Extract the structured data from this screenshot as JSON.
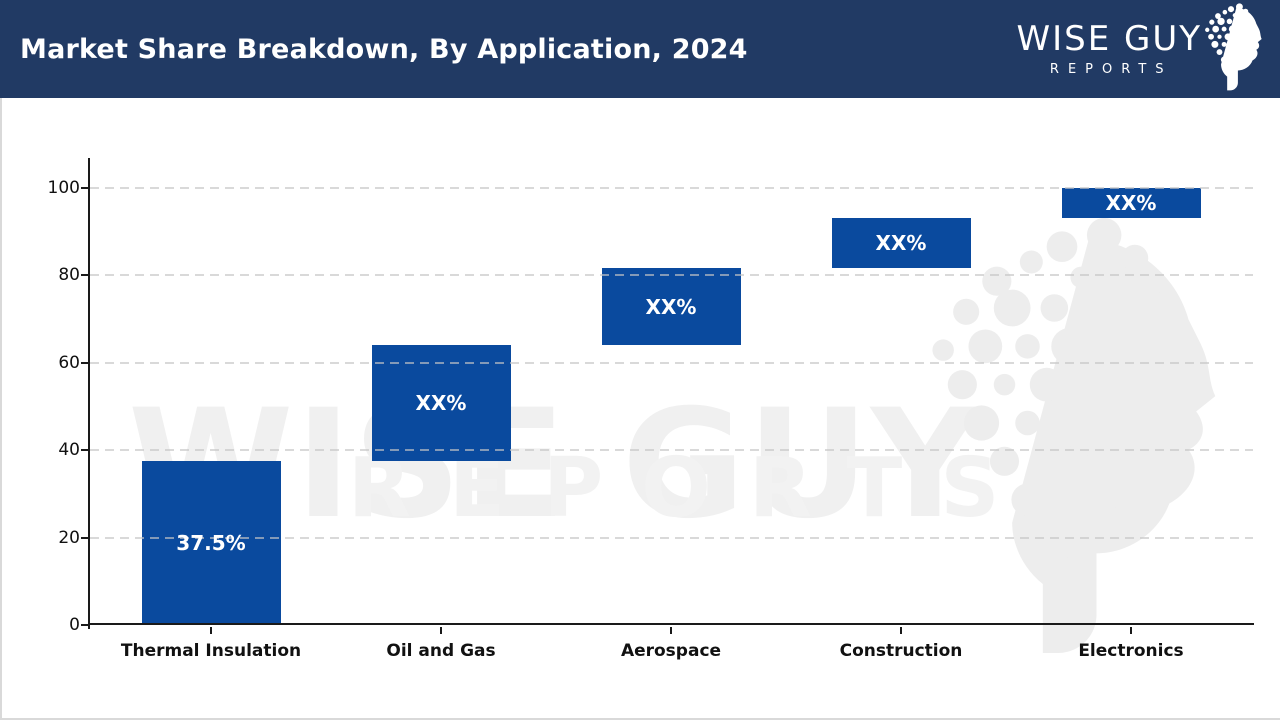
{
  "header": {
    "title": "Market Share Breakdown, By Application, 2024",
    "bg_color": "#213a64",
    "brand": {
      "line1": "WISE GUY",
      "line2": "REPORTS",
      "icon": "dotted-head-profile"
    }
  },
  "watermark": {
    "line1": "WISE GUY",
    "line2": "REPORTS",
    "icon": "dotted-head-profile"
  },
  "chart_data": {
    "type": "bar",
    "subtype": "waterfall",
    "title": "Market Share Breakdown, By Application, 2024",
    "categories": [
      "Thermal Insulation",
      "Oil and Gas",
      "Aerospace",
      "Construction",
      "Electronics"
    ],
    "bars": [
      {
        "category": "Thermal Insulation",
        "start": 0,
        "end": 37.5,
        "label": "37.5%"
      },
      {
        "category": "Oil and Gas",
        "start": 37.5,
        "end": 64,
        "label": "XX%"
      },
      {
        "category": "Aerospace",
        "start": 64,
        "end": 81.5,
        "label": "XX%"
      },
      {
        "category": "Construction",
        "start": 81.5,
        "end": 93,
        "label": "XX%"
      },
      {
        "category": "Electronics",
        "start": 93,
        "end": 100,
        "label": "XX%"
      }
    ],
    "ytick_labels": [
      "0",
      "20",
      "40",
      "60",
      "80",
      "100"
    ],
    "yticks": [
      0,
      20,
      40,
      60,
      80,
      100
    ],
    "ylim": [
      0,
      106.5
    ],
    "xlabel": "",
    "ylabel": "",
    "legend": "none",
    "grid": "horizontal-dashed-over-bars",
    "bar_color": "#0a4a9e",
    "bar_label_color": "#ffffff",
    "axis_color": "#1a1a1a",
    "grid_color": "#c5c5c5"
  }
}
